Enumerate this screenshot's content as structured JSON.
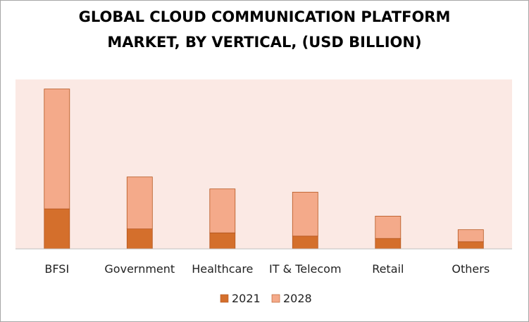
{
  "chart_data": {
    "type": "bar",
    "stacked": true,
    "title_lines": [
      "GLOBAL CLOUD COMMUNICATION PLATFORM",
      "MARKET, BY VERTICAL, (USD BILLION)"
    ],
    "categories": [
      "BFSI",
      "Government",
      "Healthcare",
      "IT & Telecom",
      "Retail",
      "Others"
    ],
    "series": [
      {
        "name": "2021",
        "values": [
          2.5,
          1.25,
          1.0,
          0.8,
          0.65,
          0.45
        ],
        "color": "#d46f2c"
      },
      {
        "name": "2028",
        "values": [
          7.5,
          3.25,
          2.75,
          2.75,
          1.4,
          0.75
        ],
        "color": "#f4aa8a"
      }
    ],
    "ylim": [
      0,
      10.6
    ],
    "grid": false,
    "legend_position": "bottom",
    "plot_background": "#fbe9e4"
  }
}
